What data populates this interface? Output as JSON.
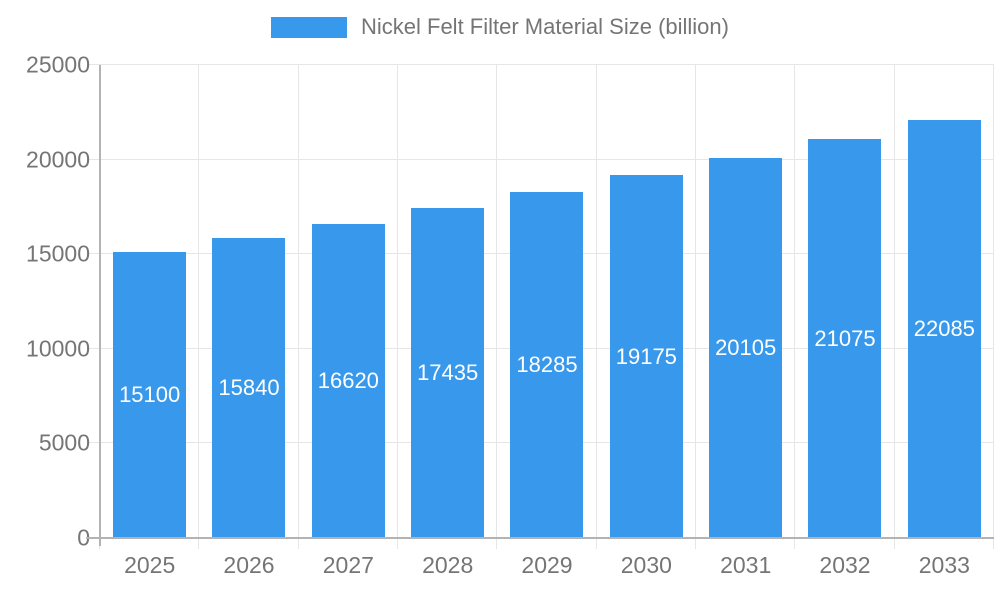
{
  "chart_data": {
    "type": "bar",
    "title": "Nickel Felt Filter Material Size (billion)",
    "legend_position": "top",
    "categories": [
      "2025",
      "2026",
      "2027",
      "2028",
      "2029",
      "2030",
      "2031",
      "2032",
      "2033"
    ],
    "values": [
      15100,
      15840,
      16620,
      17435,
      18285,
      19175,
      20105,
      21075,
      22085
    ],
    "xlabel": "",
    "ylabel": "",
    "ylim": [
      0,
      25000
    ],
    "yticks": [
      0,
      5000,
      10000,
      15000,
      20000,
      25000
    ],
    "grid": true,
    "bar_labels_shown": true,
    "colors": {
      "bar": "#3899ec",
      "bar_label": "#ffffff",
      "axis_text": "#757575",
      "grid_line": "#e6e6e6",
      "axis_line": "#b3b3b3",
      "legend_text": "#757575"
    }
  }
}
